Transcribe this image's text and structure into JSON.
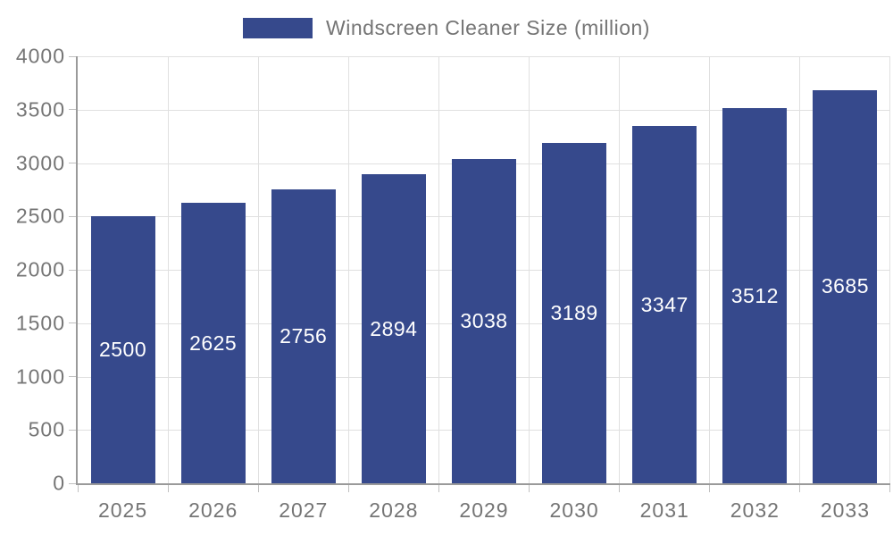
{
  "legend": {
    "label": "Windscreen Cleaner Size (million)"
  },
  "chart_data": {
    "type": "bar",
    "title": "Windscreen Cleaner Size (million)",
    "categories": [
      "2025",
      "2026",
      "2027",
      "2028",
      "2029",
      "2030",
      "2031",
      "2032",
      "2033"
    ],
    "values": [
      2500,
      2625,
      2756,
      2894,
      3038,
      3189,
      3347,
      3512,
      3685
    ],
    "bar_labels": [
      "2500",
      "2625",
      "2756",
      "2894",
      "3038",
      "3189",
      "3347",
      "3512",
      "3685"
    ],
    "xlabel": "",
    "ylabel": "",
    "ylim": [
      0,
      4000
    ],
    "yticks": [
      0,
      500,
      1000,
      1500,
      2000,
      2500,
      3000,
      3500,
      4000
    ],
    "legend_entries": [
      "Windscreen Cleaner Size (million)"
    ],
    "legend_position": "top-center",
    "grid": true,
    "colors": {
      "bar": "#36498C",
      "axis": "#9a9a9a",
      "grid": "#e0e0e0",
      "tick": "#c0c0c0",
      "tick_text": "#757575",
      "bar_label": "#ffffff",
      "legend_text": "#757575"
    }
  }
}
